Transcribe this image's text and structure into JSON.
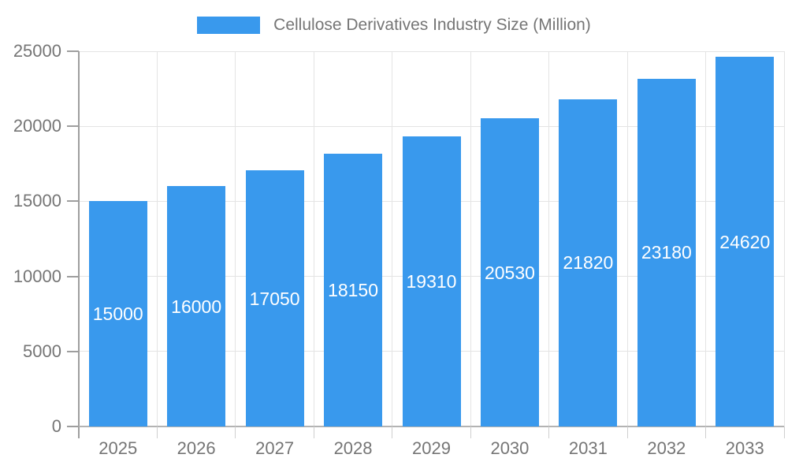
{
  "legend": {
    "series_label": "Cellulose Derivatives Industry Size (Million)",
    "swatch_color": "#3999ed"
  },
  "chart_data": {
    "type": "bar",
    "title": "Cellulose Derivatives Industry Size (Million)",
    "categories": [
      "2025",
      "2026",
      "2027",
      "2028",
      "2029",
      "2030",
      "2031",
      "2032",
      "2033"
    ],
    "values": [
      15000,
      16000,
      17050,
      18150,
      19310,
      20530,
      21820,
      23180,
      24620
    ],
    "value_labels": [
      "15000",
      "16000",
      "17050",
      "18150",
      "19310",
      "20530",
      "21820",
      "23180",
      "24620"
    ],
    "xlabel": "",
    "ylabel": "",
    "ylim": [
      0,
      25000
    ],
    "yticks": [
      0,
      5000,
      10000,
      15000,
      20000,
      25000
    ],
    "ytick_labels": [
      "0",
      "5000",
      "10000",
      "15000",
      "20000",
      "25000"
    ],
    "grid": true,
    "legend_position": "top",
    "value_label_position": "center-of-bar",
    "colors": {
      "bar": "#3999ed",
      "bar_label": "#ffffff",
      "axis_text": "#757575",
      "gridline": "#e4e4e4",
      "axis_line": "#9e9e9e",
      "x_axis_line": "#b3b3b3",
      "minor_tick": "#cfcfcf",
      "background": "#ffffff"
    }
  }
}
